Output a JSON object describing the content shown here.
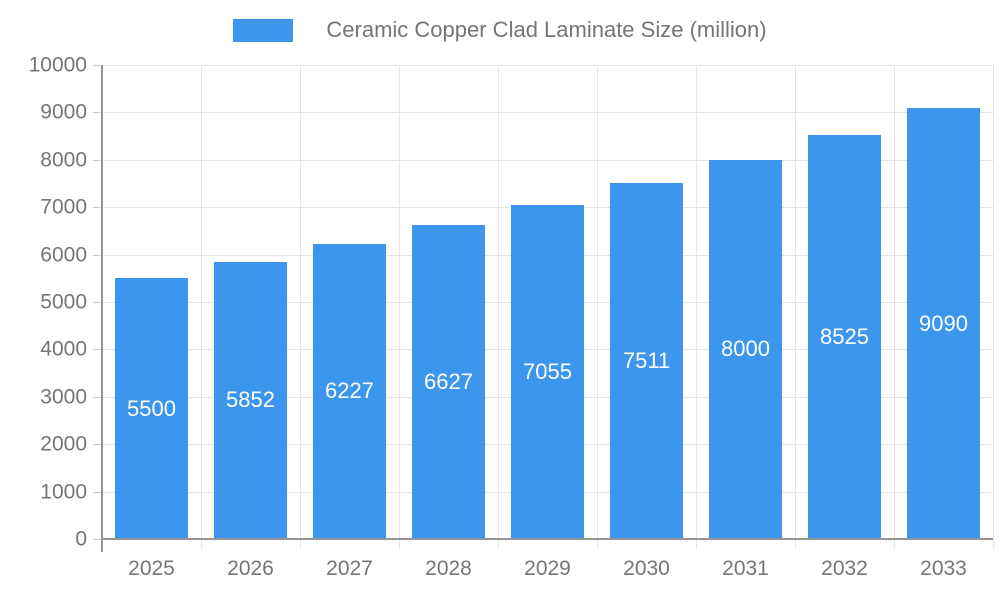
{
  "chart_data": {
    "type": "bar",
    "title": "Ceramic Copper Clad Laminate Size (million)",
    "categories": [
      "2025",
      "2026",
      "2027",
      "2028",
      "2029",
      "2030",
      "2031",
      "2032",
      "2033"
    ],
    "values": [
      5500,
      5852,
      6227,
      6627,
      7055,
      7511,
      8000,
      8525,
      9090
    ],
    "xlabel": "",
    "ylabel": "",
    "ylim": [
      0,
      10000
    ],
    "ytick_interval": 1000,
    "yticks": [
      0,
      1000,
      2000,
      3000,
      4000,
      5000,
      6000,
      7000,
      8000,
      9000,
      10000
    ],
    "grid": true,
    "legend_position": "top",
    "bar_color": "#3C96EE",
    "value_label_color": "#ffffff",
    "axis_text_color": "#757575",
    "grid_color": "#e4e4e4",
    "axis_line_color": "#969696"
  }
}
